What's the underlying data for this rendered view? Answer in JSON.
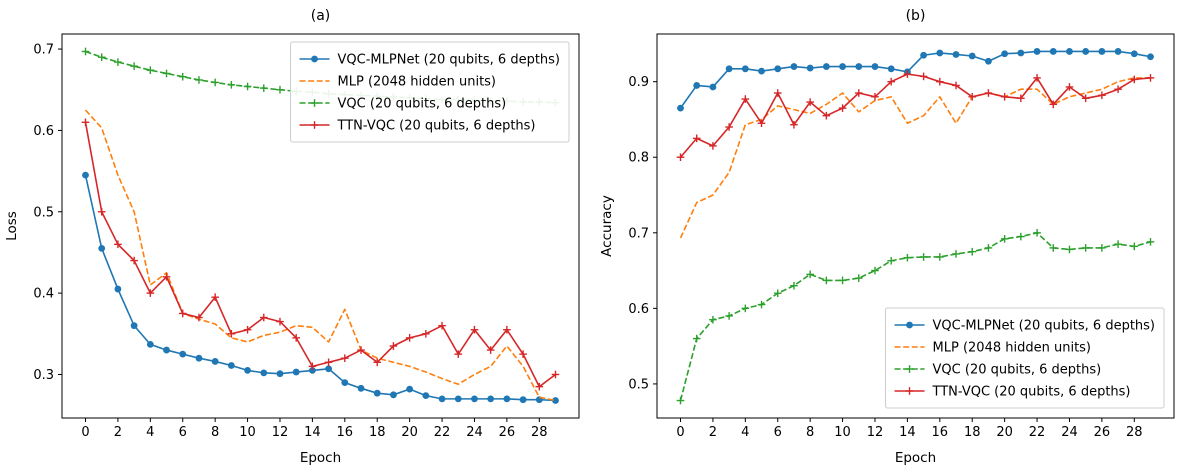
{
  "figure": {
    "background": "#ffffff"
  },
  "chart_data": [
    {
      "type": "line",
      "title": "(a)",
      "xlabel": "Epoch",
      "ylabel": "Loss",
      "xlim": [
        -1.45,
        30.45
      ],
      "ylim": [
        0.2465,
        0.7185
      ],
      "xticks": [
        0,
        2,
        4,
        6,
        8,
        10,
        12,
        14,
        16,
        18,
        20,
        22,
        24,
        26,
        28
      ],
      "yticks": [
        0.3,
        0.4,
        0.5,
        0.6,
        0.7
      ],
      "grid": false,
      "legend_position": "upper-right",
      "x": [
        0,
        1,
        2,
        3,
        4,
        5,
        6,
        7,
        8,
        9,
        10,
        11,
        12,
        13,
        14,
        15,
        16,
        17,
        18,
        19,
        20,
        21,
        22,
        23,
        24,
        25,
        26,
        27,
        28,
        29
      ],
      "series": [
        {
          "name": "VQC-MLPNet (20 qubits, 6 depths)",
          "color": "#1f77b4",
          "dash": false,
          "marker": "circle",
          "values": [
            0.545,
            0.455,
            0.405,
            0.36,
            0.337,
            0.33,
            0.325,
            0.32,
            0.316,
            0.311,
            0.305,
            0.302,
            0.301,
            0.303,
            0.305,
            0.307,
            0.29,
            0.283,
            0.277,
            0.275,
            0.282,
            0.274,
            0.27,
            0.27,
            0.27,
            0.27,
            0.27,
            0.269,
            0.269,
            0.268
          ]
        },
        {
          "name": "MLP (2048 hidden units)",
          "color": "#ff7f0e",
          "dash": true,
          "marker": "none",
          "values": [
            0.625,
            0.603,
            0.545,
            0.5,
            0.41,
            0.425,
            0.375,
            0.368,
            0.362,
            0.345,
            0.34,
            0.348,
            0.352,
            0.36,
            0.358,
            0.34,
            0.38,
            0.33,
            0.32,
            0.315,
            0.31,
            0.303,
            0.295,
            0.288,
            0.3,
            0.31,
            0.335,
            0.31,
            0.272,
            0.268
          ]
        },
        {
          "name": "VQC (20 qubits, 6 depths)",
          "color": "#2ca02c",
          "dash": true,
          "marker": "plus",
          "values": [
            0.697,
            0.69,
            0.684,
            0.679,
            0.674,
            0.67,
            0.666,
            0.662,
            0.659,
            0.656,
            0.654,
            0.652,
            0.65,
            0.648,
            0.647,
            0.645,
            0.644,
            0.643,
            0.642,
            0.641,
            0.64,
            0.639,
            0.638,
            0.638,
            0.637,
            0.636,
            0.636,
            0.635,
            0.635,
            0.634
          ]
        },
        {
          "name": "TTN-VQC (20 qubits, 6 depths)",
          "color": "#d62728",
          "dash": false,
          "marker": "plus",
          "values": [
            0.61,
            0.5,
            0.46,
            0.44,
            0.4,
            0.42,
            0.375,
            0.37,
            0.395,
            0.35,
            0.355,
            0.37,
            0.365,
            0.345,
            0.31,
            0.315,
            0.32,
            0.33,
            0.315,
            0.335,
            0.345,
            0.35,
            0.36,
            0.325,
            0.355,
            0.33,
            0.355,
            0.325,
            0.285,
            0.3
          ]
        }
      ]
    },
    {
      "type": "line",
      "title": "(b)",
      "xlabel": "Epoch",
      "ylabel": "Accuracy",
      "xlim": [
        -1.45,
        30.45
      ],
      "ylim": [
        0.4549,
        0.9631
      ],
      "xticks": [
        0,
        2,
        4,
        6,
        8,
        10,
        12,
        14,
        16,
        18,
        20,
        22,
        24,
        26,
        28
      ],
      "yticks": [
        0.5,
        0.6,
        0.7,
        0.8,
        0.9
      ],
      "grid": false,
      "legend_position": "lower-right",
      "x": [
        0,
        1,
        2,
        3,
        4,
        5,
        6,
        7,
        8,
        9,
        10,
        11,
        12,
        13,
        14,
        15,
        16,
        17,
        18,
        19,
        20,
        21,
        22,
        23,
        24,
        25,
        26,
        27,
        28,
        29
      ],
      "series": [
        {
          "name": "VQC-MLPNet (20 qubits, 6 depths)",
          "color": "#1f77b4",
          "dash": false,
          "marker": "circle",
          "values": [
            0.865,
            0.895,
            0.893,
            0.917,
            0.917,
            0.914,
            0.917,
            0.92,
            0.918,
            0.92,
            0.92,
            0.92,
            0.92,
            0.917,
            0.913,
            0.935,
            0.938,
            0.936,
            0.934,
            0.927,
            0.937,
            0.938,
            0.94,
            0.94,
            0.94,
            0.94,
            0.94,
            0.94,
            0.937,
            0.933
          ]
        },
        {
          "name": "MLP (2048 hidden units)",
          "color": "#ff7f0e",
          "dash": true,
          "marker": "none",
          "values": [
            0.693,
            0.74,
            0.75,
            0.78,
            0.843,
            0.85,
            0.868,
            0.863,
            0.858,
            0.87,
            0.885,
            0.86,
            0.875,
            0.88,
            0.845,
            0.855,
            0.88,
            0.845,
            0.88,
            0.885,
            0.88,
            0.89,
            0.89,
            0.87,
            0.88,
            0.885,
            0.89,
            0.9,
            0.905,
            0.905
          ]
        },
        {
          "name": "VQC (20 qubits, 6 depths)",
          "color": "#2ca02c",
          "dash": true,
          "marker": "plus",
          "values": [
            0.478,
            0.56,
            0.585,
            0.59,
            0.6,
            0.605,
            0.62,
            0.63,
            0.645,
            0.637,
            0.637,
            0.64,
            0.65,
            0.663,
            0.667,
            0.668,
            0.668,
            0.672,
            0.675,
            0.68,
            0.692,
            0.695,
            0.7,
            0.68,
            0.678,
            0.68,
            0.68,
            0.685,
            0.682,
            0.688
          ]
        },
        {
          "name": "TTN-VQC (20 qubits, 6 depths)",
          "color": "#d62728",
          "dash": false,
          "marker": "plus",
          "values": [
            0.8,
            0.825,
            0.815,
            0.84,
            0.877,
            0.845,
            0.885,
            0.843,
            0.873,
            0.855,
            0.865,
            0.885,
            0.88,
            0.9,
            0.91,
            0.907,
            0.9,
            0.895,
            0.88,
            0.885,
            0.88,
            0.878,
            0.905,
            0.87,
            0.893,
            0.878,
            0.882,
            0.89,
            0.903,
            0.905
          ]
        }
      ]
    }
  ]
}
